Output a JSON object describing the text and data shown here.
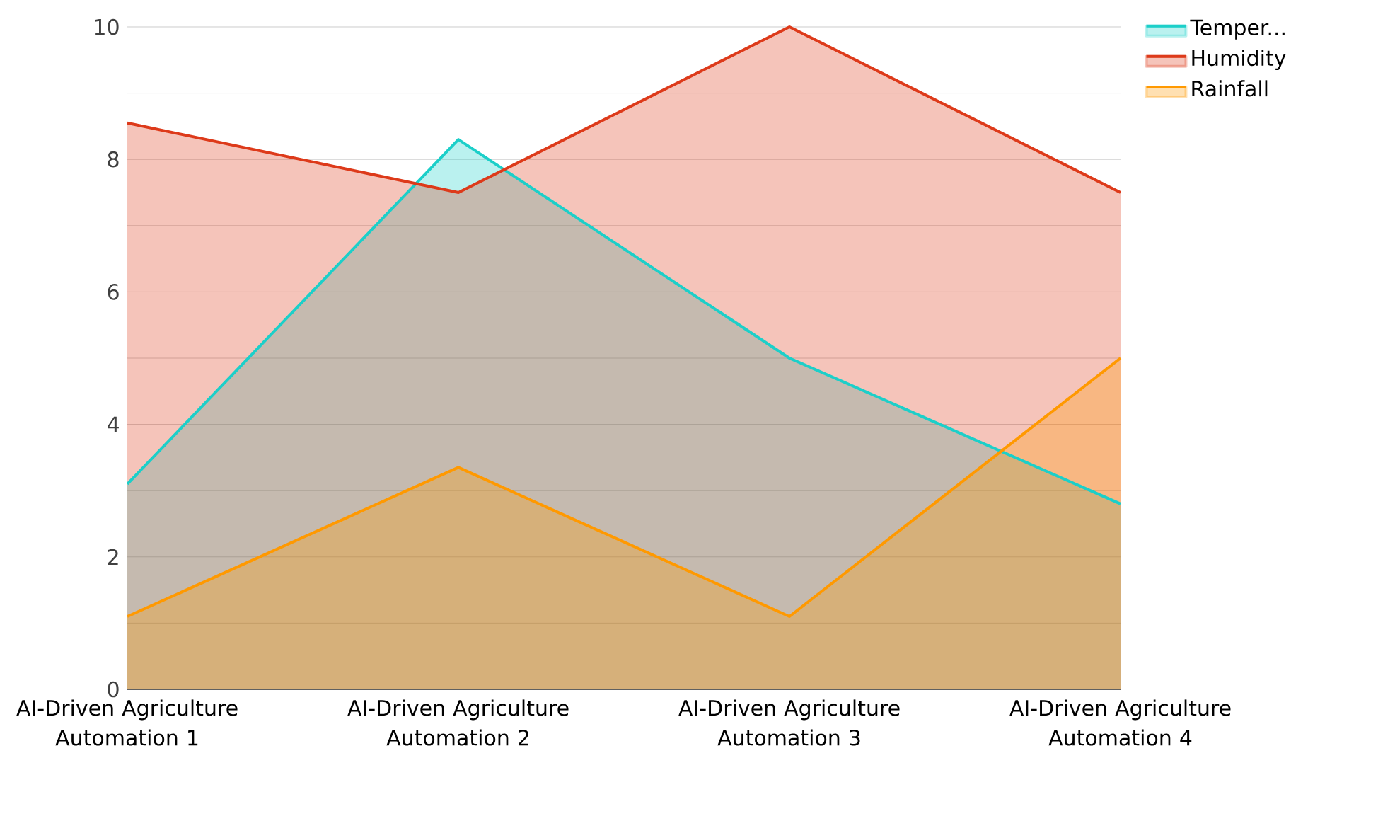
{
  "chart_data": {
    "type": "area",
    "categories": [
      "AI-Driven Agriculture Automation 1",
      "AI-Driven Agriculture Automation 2",
      "AI-Driven Agriculture Automation 3",
      "AI-Driven Agriculture Automation 4"
    ],
    "series": [
      {
        "name": "Temper...",
        "color": "#1ccfc9",
        "values": [
          3.1,
          8.3,
          5.0,
          2.8
        ]
      },
      {
        "name": "Humidity",
        "color": "#dd3a1a",
        "values": [
          8.55,
          7.5,
          10,
          7.5
        ]
      },
      {
        "name": "Rainfall",
        "color": "#ff9900",
        "values": [
          1.1,
          3.35,
          1.1,
          5.0
        ]
      }
    ],
    "ylim": [
      0,
      10
    ],
    "yticks": [
      0,
      {
        "value": 1,
        "label": null
      },
      2,
      {
        "value": 3,
        "label": null
      },
      4,
      {
        "value": 5,
        "label": null
      },
      6,
      {
        "value": 7,
        "label": null
      },
      8,
      {
        "value": 9,
        "label": null
      },
      10
    ],
    "grid": "y",
    "legend": "top right"
  }
}
